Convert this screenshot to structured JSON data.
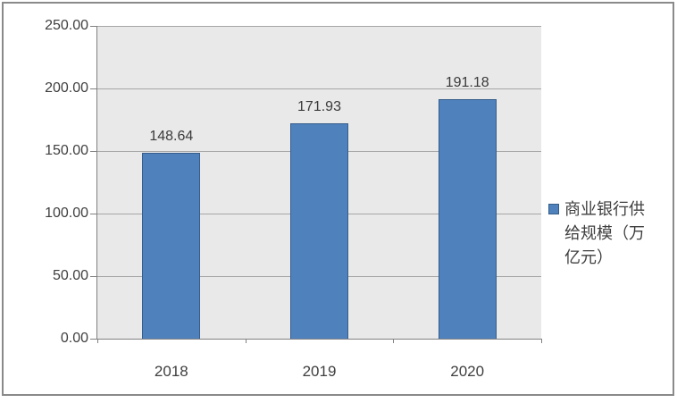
{
  "chart": {
    "legend": {
      "label": "商业银行供给规模（万亿元）",
      "lines": [
        "商业银行供",
        "给规模（万",
        "亿元）"
      ]
    },
    "colors": {
      "bar_fill": "#4f81bd",
      "bar_border": "#355d8a",
      "plot_background": "#e9e9e9",
      "gridline": "#a6a6a6",
      "axis_line": "#808080",
      "frame_border": "#8a8a8a",
      "text": "#3f3f3f"
    }
  },
  "chart_data": {
    "type": "bar",
    "title": "",
    "xlabel": "",
    "ylabel": "",
    "categories": [
      "2018",
      "2019",
      "2020"
    ],
    "values": [
      148.64,
      171.93,
      191.18
    ],
    "value_labels": [
      "148.64",
      "171.93",
      "191.18"
    ],
    "series": [
      {
        "name": "商业银行供给规模（万亿元）",
        "values": [
          148.64,
          171.93,
          191.18
        ]
      }
    ],
    "ylim": [
      0,
      250
    ],
    "yticks": [
      {
        "value": 0,
        "label": "0.00"
      },
      {
        "value": 50,
        "label": "50.00"
      },
      {
        "value": 100,
        "label": "100.00"
      },
      {
        "value": 150,
        "label": "150.00"
      },
      {
        "value": 200,
        "label": "200.00"
      },
      {
        "value": 250,
        "label": "250.00"
      }
    ],
    "grid": "horizontal",
    "legend_position": "right",
    "data_labels_shown": true
  }
}
